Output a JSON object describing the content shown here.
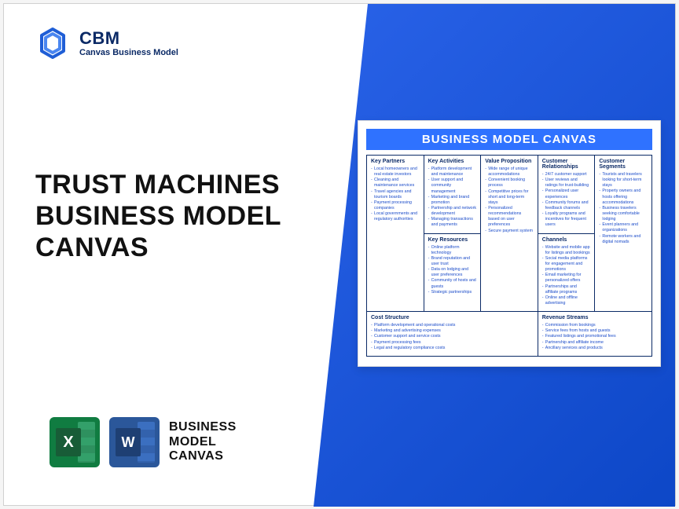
{
  "logo": {
    "abbr": "CBM",
    "full": "Canvas Business Model"
  },
  "title": "TRUST MACHINES BUSINESS MODEL CANVAS",
  "bmc_label_lines": [
    "BUSINESS",
    "MODEL",
    "CANVAS"
  ],
  "sheet_title": "BUSINESS MODEL CANVAS",
  "colors": {
    "brand_blue": "#2962e8",
    "heading_navy": "#0b2a66",
    "cell_text": "#1a4bc9",
    "excel_green": "#107c41",
    "word_blue": "#2b579a"
  },
  "canvas": {
    "kp": {
      "title": "Key Partners",
      "items": [
        "Local homeowners and real estate investors",
        "Cleaning and maintenance services",
        "Travel agencies and tourism boards",
        "Payment processing companies",
        "Local governments and regulatory authorities"
      ]
    },
    "ka": {
      "title": "Key Activities",
      "items": [
        "Platform development and maintenance",
        "User support and community management",
        "Marketing and brand promotion",
        "Partnership and network development",
        "Managing transactions and payments"
      ]
    },
    "kr": {
      "title": "Key Resources",
      "items": [
        "Online platform technology",
        "Brand reputation and user trust",
        "Data on lodging and user preferences",
        "Community of hosts and guests",
        "Strategic partnerships"
      ]
    },
    "vp": {
      "title": "Value Proposition",
      "items": [
        "Wide range of unique accommodations",
        "Convenient booking process",
        "Competitive prices for short and long-term stays",
        "Personalized recommendations based on user preferences",
        "Secure payment system"
      ]
    },
    "cr": {
      "title": "Customer Relationships",
      "items": [
        "24/7 customer support",
        "User reviews and ratings for trust-building",
        "Personalized user experiences",
        "Community forums and feedback channels",
        "Loyalty programs and incentives for frequent users"
      ]
    },
    "ch": {
      "title": "Channels",
      "items": [
        "Website and mobile app for listings and bookings",
        "Social media platforms for engagement and promotions",
        "Email marketing for personalized offers",
        "Partnerships and affiliate programs",
        "Online and offline advertising"
      ]
    },
    "cs": {
      "title": "Customer Segments",
      "items": [
        "Tourists and travelers looking for short-term stays",
        "Property owners and hosts offering accommodations",
        "Business travelers seeking comfortable lodging",
        "Event planners and organizations",
        "Remote workers and digital nomads"
      ]
    },
    "cost": {
      "title": "Cost Structure",
      "items": [
        "Platform development and operational costs",
        "Marketing and advertising expenses",
        "Customer support and service costs",
        "Payment processing fees",
        "Legal and regulatory compliance costs"
      ]
    },
    "rev": {
      "title": "Revenue Streams",
      "items": [
        "Commission from bookings",
        "Service fees from hosts and guests",
        "Featured listings and promotional fees",
        "Partnership and affiliate income",
        "Ancillary services and products"
      ]
    }
  }
}
